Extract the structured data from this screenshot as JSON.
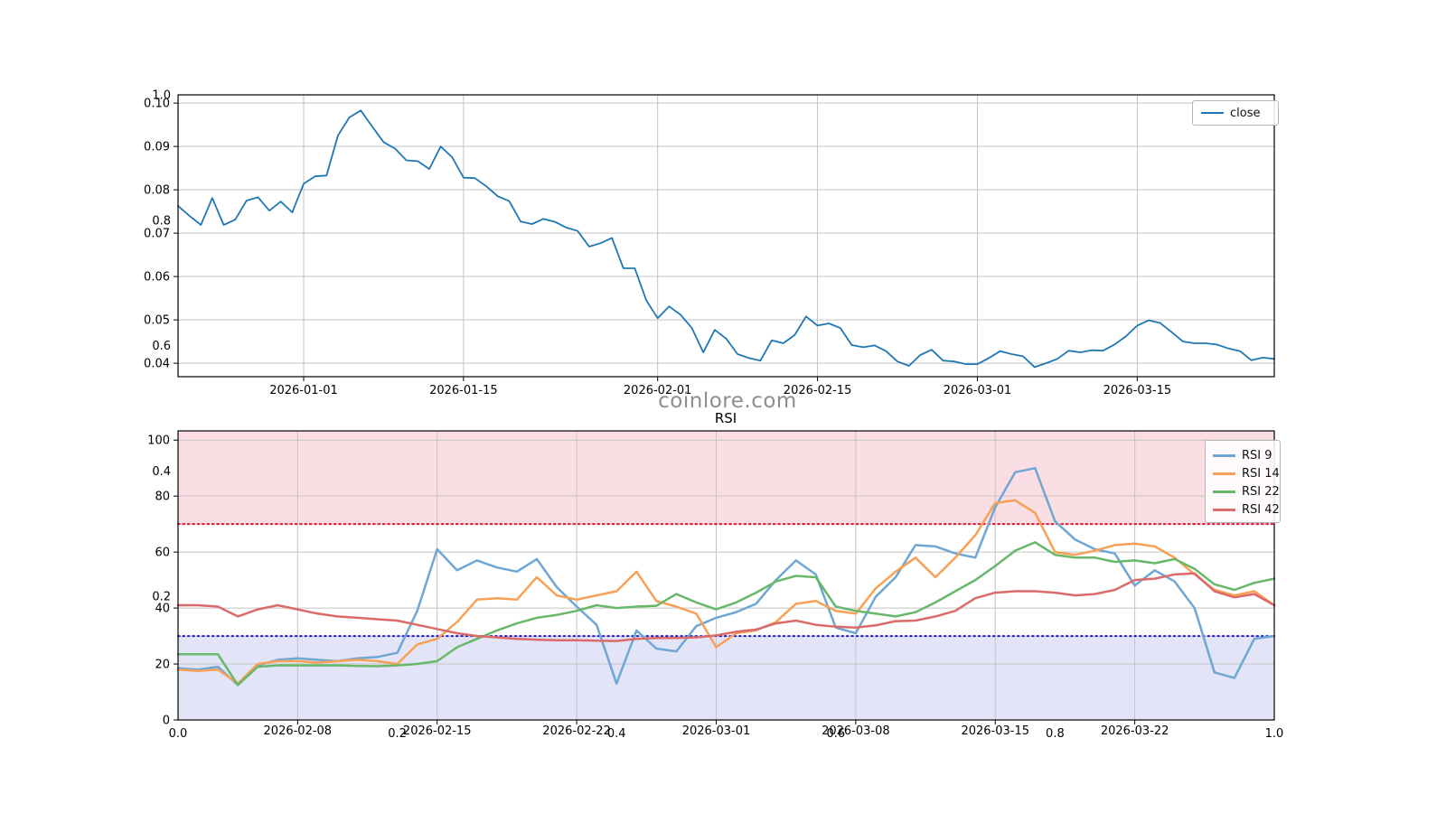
{
  "watermark": "coinlore.com",
  "overlay_axis": {
    "x_ticks": [
      "0.0",
      "0.2",
      "0.4",
      "0.6",
      "0.8",
      "1.0"
    ],
    "y_ticks": [
      "1.0",
      "0.8",
      "0.6",
      "0.4",
      "0.2",
      "0.0"
    ]
  },
  "colors": {
    "close": "#1f77b4",
    "rsi9": "#6ea6d4",
    "rsi14": "#f8a055",
    "rsi22": "#67b868",
    "rsi42": "#db6a6a",
    "overbought_line": "#e8112d",
    "oversold_line": "#2020cc",
    "overbought_band": "#fbdee3",
    "oversold_band": "#e4e4f8",
    "grid": "#c3c3c3",
    "spine": "#000000"
  },
  "chart_data": [
    {
      "type": "line",
      "panel": "price",
      "title": "",
      "legend": [
        "close"
      ],
      "legend_position": "upper right",
      "grid": true,
      "x_start_date": "2025-12-21",
      "x_tick_labels": [
        "2026-01-01",
        "2026-01-15",
        "2026-02-01",
        "2026-02-15",
        "2026-03-01",
        "2026-03-15"
      ],
      "x_tick_index": [
        11,
        25,
        42,
        56,
        70,
        84
      ],
      "y_ticks": [
        0.04,
        0.05,
        0.06,
        0.07,
        0.08,
        0.09,
        0.1
      ],
      "y_format": "price",
      "ylim": [
        0.0369,
        0.1019
      ],
      "series": [
        {
          "name": "close",
          "color": "#1f77b4",
          "width": 1.8,
          "values": [
            0.0763,
            0.074,
            0.0719,
            0.0781,
            0.0719,
            0.0731,
            0.0775,
            0.0783,
            0.0752,
            0.0773,
            0.0748,
            0.0814,
            0.0831,
            0.0833,
            0.0925,
            0.0967,
            0.0983,
            0.0946,
            0.091,
            0.0895,
            0.0868,
            0.0866,
            0.0848,
            0.09,
            0.0875,
            0.0828,
            0.0827,
            0.0808,
            0.0785,
            0.0774,
            0.0727,
            0.0721,
            0.0733,
            0.0726,
            0.0713,
            0.0705,
            0.0669,
            0.0677,
            0.0689,
            0.0619,
            0.0619,
            0.0545,
            0.0504,
            0.0531,
            0.0512,
            0.0481,
            0.0425,
            0.0477,
            0.0457,
            0.0421,
            0.0412,
            0.0406,
            0.0453,
            0.0446,
            0.0465,
            0.0508,
            0.0487,
            0.0492,
            0.0481,
            0.0442,
            0.0437,
            0.0441,
            0.0428,
            0.0404,
            0.0394,
            0.0419,
            0.0431,
            0.0406,
            0.0404,
            0.0398,
            0.0398,
            0.0412,
            0.0428,
            0.0421,
            0.0416,
            0.0391,
            0.04,
            0.041,
            0.0429,
            0.0425,
            0.043,
            0.0429,
            0.0443,
            0.0462,
            0.0487,
            0.0499,
            0.0493,
            0.0472,
            0.045,
            0.0446,
            0.0446,
            0.0443,
            0.0434,
            0.0428,
            0.0407,
            0.0413,
            0.041
          ]
        }
      ]
    },
    {
      "type": "line",
      "panel": "rsi",
      "title": "RSI",
      "legend": [
        "RSI 9",
        "RSI 14",
        "RSI 22",
        "RSI 42"
      ],
      "legend_position": "upper right",
      "grid": true,
      "x_start_date": "2026-02-02",
      "x_tick_labels": [
        "2026-02-08",
        "2026-02-15",
        "2026-02-22",
        "2026-03-01",
        "2026-03-08",
        "2026-03-15",
        "2026-03-22"
      ],
      "x_tick_index": [
        6,
        13,
        20,
        27,
        34,
        41,
        48
      ],
      "y_ticks": [
        0,
        20,
        40,
        60,
        80,
        100
      ],
      "y_format": "int",
      "ylim": [
        0,
        103.3
      ],
      "overbought_level": 70,
      "oversold_level": 30,
      "bands": [
        {
          "from": 70,
          "to": 103.3,
          "color": "#fbdee3",
          "name": "overbought-band"
        },
        {
          "from": 0,
          "to": 30,
          "color": "#e4e4f8",
          "name": "oversold-band"
        }
      ],
      "thresholds": [
        {
          "value": 70,
          "color": "#e8112d",
          "name": "overbought-threshold"
        },
        {
          "value": 30,
          "color": "#2020cc",
          "name": "oversold-threshold"
        }
      ],
      "series": [
        {
          "name": "RSI 9",
          "color": "#6ea6d4",
          "width": 2.5,
          "values": [
            18.5,
            18,
            19,
            12.5,
            19.5,
            21.5,
            22,
            21.5,
            21,
            22,
            22.5,
            24,
            39,
            61,
            53.5,
            57,
            54.5,
            53,
            57.5,
            47.5,
            40.5,
            34,
            13,
            32,
            25.5,
            24.5,
            33.5,
            36.5,
            38.5,
            41.5,
            50,
            57,
            52,
            33,
            31,
            44,
            51,
            62.5,
            62,
            59.5,
            58,
            76,
            88.5,
            90,
            71,
            64.5,
            61,
            59.5,
            48,
            53.5,
            49.5,
            40,
            17,
            15,
            29,
            30
          ]
        },
        {
          "name": "RSI 14",
          "color": "#f8a055",
          "width": 2.5,
          "values": [
            18,
            17.5,
            18,
            13,
            20,
            21,
            21,
            20.5,
            21,
            21.5,
            21,
            20,
            27,
            29,
            35,
            43,
            43.5,
            43,
            51,
            44.5,
            43,
            44.5,
            46,
            53,
            42.5,
            40.5,
            38,
            26,
            31,
            32,
            35,
            41.5,
            42.5,
            39,
            38,
            47,
            53,
            58,
            51,
            58,
            66,
            77.5,
            78.5,
            74,
            60,
            59,
            60.5,
            62.5,
            63,
            62,
            58,
            52,
            46.5,
            44.5,
            46,
            41
          ]
        },
        {
          "name": "RSI 22",
          "color": "#67b868",
          "width": 2.5,
          "values": [
            23.5,
            23.5,
            23.5,
            12.5,
            19,
            19.5,
            19.5,
            19.5,
            19.5,
            19.3,
            19.2,
            19.5,
            20,
            21,
            26,
            29,
            32,
            34.5,
            36.5,
            37.5,
            39,
            41,
            40,
            40.5,
            40.8,
            45,
            42,
            39.5,
            42,
            45.5,
            49.5,
            51.5,
            51,
            40.5,
            39,
            38,
            37,
            38.5,
            42,
            46,
            50,
            55,
            60.5,
            63.5,
            59,
            58,
            58,
            56.5,
            57,
            56,
            57.5,
            54,
            48.5,
            46.5,
            49,
            50.5
          ]
        },
        {
          "name": "RSI 42",
          "color": "#db6a6a",
          "width": 2.5,
          "values": [
            41,
            41,
            40.5,
            37,
            39.5,
            41,
            39.5,
            38,
            37,
            36.5,
            36,
            35.5,
            34,
            32.5,
            31,
            30,
            29.5,
            29,
            28.7,
            28.5,
            28.5,
            28.3,
            28.2,
            29,
            29.3,
            29.3,
            29.5,
            30.2,
            31.5,
            32.3,
            34.5,
            35.5,
            34,
            33.3,
            33,
            33.8,
            35.3,
            35.5,
            37,
            39,
            43.5,
            45.5,
            46,
            46,
            45.5,
            44.5,
            45,
            46.5,
            50,
            50.5,
            52,
            52.4,
            46,
            43.8,
            45,
            41
          ]
        }
      ]
    }
  ]
}
